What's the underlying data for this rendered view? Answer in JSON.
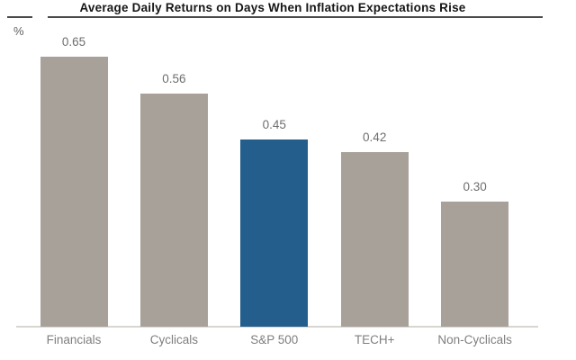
{
  "title": "Average Daily Returns on Days When Inflation Expectations Rise",
  "y_axis_unit": "%",
  "colors": {
    "background": "#ffffff",
    "bar_default": "#a8a19a",
    "bar_highlight": "#235e8c",
    "title_text": "#161616",
    "title_rule": "#4a4a4a",
    "value_label": "#6e6e6e",
    "category_label": "#7f7f7f",
    "axis_line": "#d9d6d2"
  },
  "chart_data": {
    "type": "bar",
    "title": "Average Daily Returns on Days When Inflation Expectations Rise",
    "xlabel": "",
    "ylabel": "%",
    "categories": [
      "Financials",
      "Cyclicals",
      "S&P 500",
      "TECH+",
      "Non-Cyclicals"
    ],
    "values": [
      0.65,
      0.56,
      0.45,
      0.42,
      0.3
    ],
    "value_labels": [
      "0.65",
      "0.56",
      "0.45",
      "0.42",
      "0.30"
    ],
    "bar_colors": [
      "#a8a19a",
      "#a8a19a",
      "#235e8c",
      "#a8a19a",
      "#a8a19a"
    ],
    "highlighted_category": "S&P 500",
    "ylim": [
      0,
      0.72
    ],
    "grid": false,
    "legend": "none",
    "y_axis_ticks": "none",
    "data_labels": "above bars"
  }
}
